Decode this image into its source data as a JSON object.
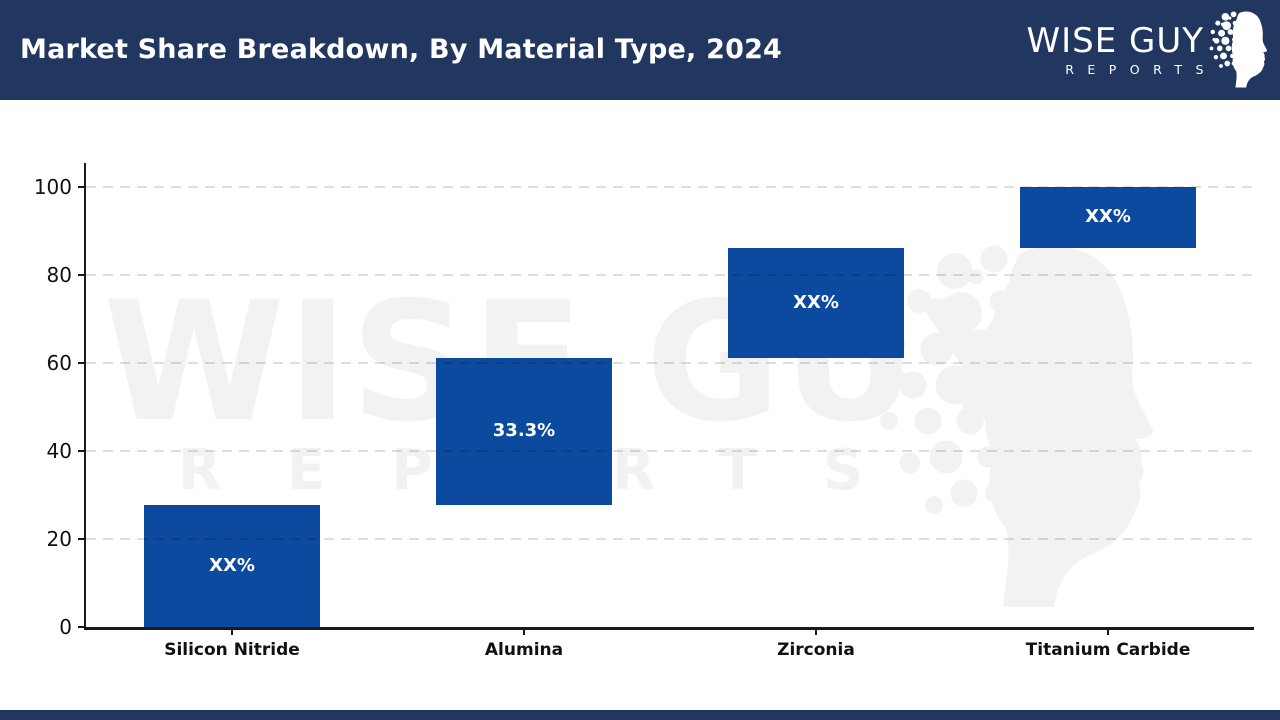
{
  "colors": {
    "header_bg": "#21375f",
    "title_text": "#ffffff",
    "bar": "#0b4a9e",
    "bar_label": "#ffffff",
    "grid_line": "rgba(0,0,0,0.13)",
    "axis": "#1a1a1a",
    "tick_label": "#111111",
    "watermark": "#f2f2f2"
  },
  "header": {
    "title": "Market Share Breakdown, By Material Type, 2024",
    "logo": {
      "line1": "WISE GUY",
      "line2": "REPORTS"
    }
  },
  "watermark": {
    "line1": "WISE GUY",
    "line2": "REPORTS"
  },
  "chart_data": {
    "type": "bar",
    "subtype": "floating-segment-waterfall",
    "title": "Market Share Breakdown, By Material Type, 2024",
    "categories": [
      "Silicon Nitride",
      "Alumina",
      "Zirconia",
      "Titanium Carbide"
    ],
    "segments": [
      {
        "category": "Silicon Nitride",
        "start": 0,
        "end": 27.8,
        "value_label": "XX%"
      },
      {
        "category": "Alumina",
        "start": 27.8,
        "end": 61.1,
        "value_label": "33.3%"
      },
      {
        "category": "Zirconia",
        "start": 61.1,
        "end": 86.1,
        "value_label": "XX%"
      },
      {
        "category": "Titanium Carbide",
        "start": 86.1,
        "end": 100,
        "value_label": "XX%"
      }
    ],
    "implied_segment_heights": [
      27.8,
      33.3,
      25.0,
      13.9
    ],
    "xlabel": "",
    "ylabel": "",
    "yticks": [
      0,
      20,
      40,
      60,
      80,
      100
    ],
    "ylim": [
      0,
      105.3
    ],
    "grid": "horizontal-dashed",
    "grid_above_bars": true,
    "legend": "none",
    "bar_color": "#0b4a9e"
  }
}
